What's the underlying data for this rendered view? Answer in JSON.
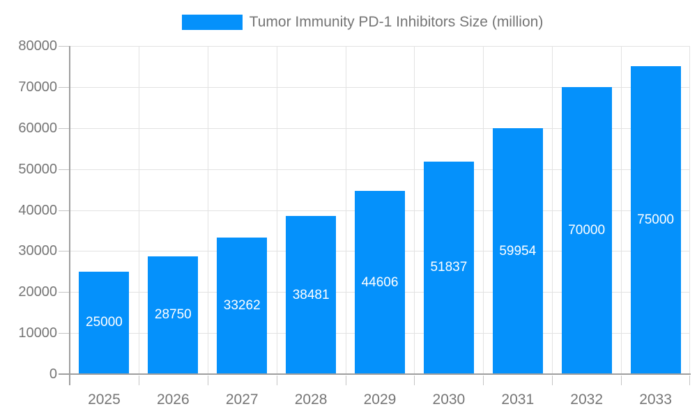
{
  "legend": {
    "label": "Tumor Immunity PD-1 Inhibitors Size (million)"
  },
  "chart_data": {
    "type": "bar",
    "title": "Tumor Immunity PD-1 Inhibitors Size (million)",
    "categories": [
      "2025",
      "2026",
      "2027",
      "2028",
      "2029",
      "2030",
      "2031",
      "2032",
      "2033"
    ],
    "values": [
      25000,
      28750,
      33262,
      38481,
      44606,
      51837,
      59954,
      70000,
      75000
    ],
    "xlabel": "",
    "ylabel": "",
    "ylim": [
      0,
      80000
    ],
    "ytick_interval": 10000,
    "yticks": [
      0,
      10000,
      20000,
      30000,
      40000,
      50000,
      60000,
      70000,
      80000
    ],
    "legend_position": "top",
    "grid": true,
    "bar_labels_inside": true
  },
  "colors": {
    "bar": "#0591fb",
    "bar_label": "#ffffff",
    "axis_line": "#9e9e9e",
    "gridline": "#e2e2e2",
    "tick": "#c4c4c4",
    "axis_text": "#757575",
    "background": "#ffffff"
  }
}
